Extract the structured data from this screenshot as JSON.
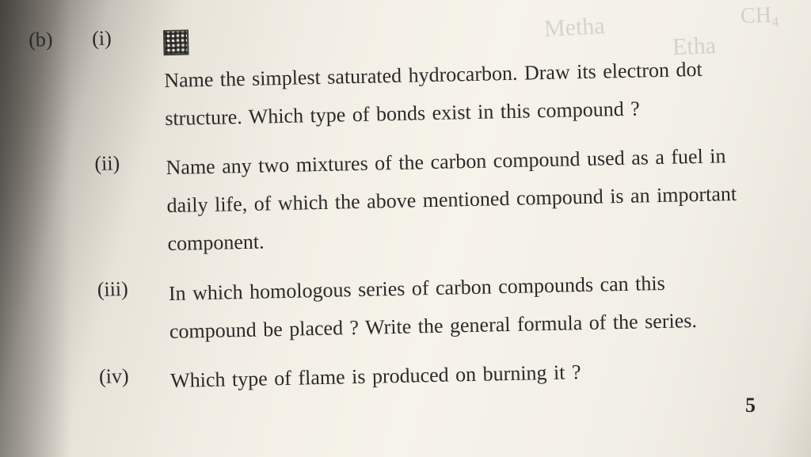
{
  "question": {
    "label": "(b)",
    "marks": "5",
    "parts": [
      {
        "roman": "(i)",
        "has_qr": true,
        "text": "Name the simplest saturated hydrocarbon. Draw its electron dot structure. Which type of bonds exist in this compound ?"
      },
      {
        "roman": "(ii)",
        "has_qr": false,
        "text": "Name any two mixtures of the carbon compound used as a fuel in daily life, of which the above mentioned compound is an important component."
      },
      {
        "roman": "(iii)",
        "has_qr": false,
        "text": "In which homologous series of carbon compounds can this compound be placed ? Write the general formula of the series."
      },
      {
        "roman": "(iv)",
        "has_qr": false,
        "text": "Which type of flame is produced on burning it ?"
      }
    ]
  },
  "handwriting": {
    "h1": "Metha",
    "h2": "Etha",
    "h3": "CH₄"
  },
  "style": {
    "font_family": "Times New Roman",
    "body_fontsize_pt": 20,
    "line_height": 1.85,
    "text_color": "#2a2a2a",
    "paper_bg_main": "#f4f0e7",
    "paper_bg_shadow": "#7a766e",
    "hand_color": "rgba(70,70,90,0.18)"
  }
}
